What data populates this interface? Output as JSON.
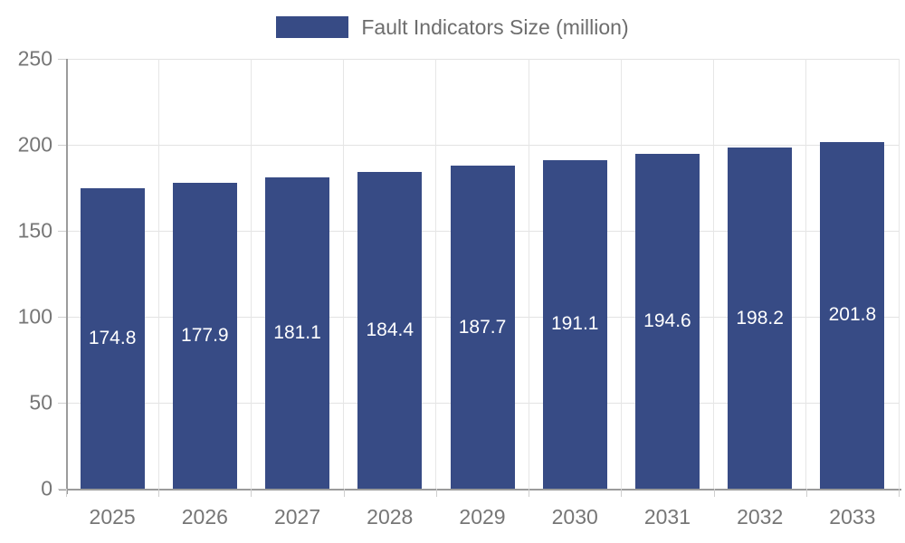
{
  "legend": {
    "label": "Fault Indicators Size (million)"
  },
  "colors": {
    "bar": "#374b85",
    "axis_line": "#9b9b9b",
    "gridline": "#e3e3e3",
    "tick": "#cfcfcf",
    "axis_text": "#767676",
    "legend_text": "#6d6d6d",
    "value_label_text": "#ffffff"
  },
  "chart_data": {
    "type": "bar",
    "title": "Fault Indicators Size (million)",
    "categories": [
      "2025",
      "2026",
      "2027",
      "2028",
      "2029",
      "2030",
      "2031",
      "2032",
      "2033"
    ],
    "values": [
      174.8,
      177.9,
      181.1,
      184.4,
      187.7,
      191.1,
      194.6,
      198.2,
      201.8
    ],
    "value_labels": [
      "174.8",
      "177.9",
      "181.1",
      "184.4",
      "187.7",
      "191.1",
      "194.6",
      "198.2",
      "201.8"
    ],
    "xlabel": "",
    "ylabel": "",
    "ylim": [
      0,
      250
    ],
    "yticks": [
      0,
      50,
      100,
      150,
      200,
      250
    ],
    "ytick_labels": [
      "0",
      "50",
      "100",
      "150",
      "200",
      "250"
    ],
    "grid": true,
    "legend_position": "top-center",
    "bar_color": "#374b85",
    "value_label_position": "center-of-bar"
  }
}
